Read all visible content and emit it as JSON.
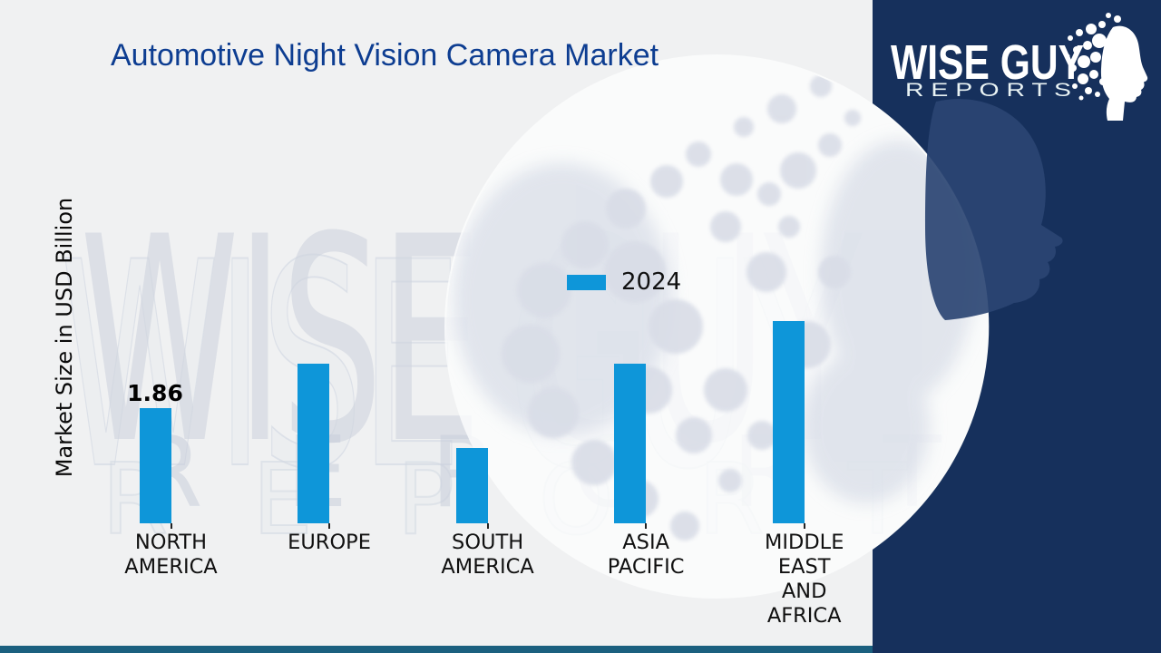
{
  "page": {
    "background_color": "#f0f1f2",
    "bottom_bar_color": "#1b607f"
  },
  "title": {
    "text": "Automotive Night Vision Camera Market",
    "color": "#0d3d91"
  },
  "logo": {
    "brand_line1": "WISE GUY",
    "brand_line2": "R E P O R T S",
    "panel_color": "#16305c"
  },
  "watermark": {
    "line1": "WISE GUY",
    "line2": "R E P O R T S"
  },
  "legend": {
    "label": "2024",
    "swatch_color": "#0e96d9"
  },
  "chart_data": {
    "type": "bar",
    "title": "Automotive Night Vision Camera Market",
    "xlabel": "",
    "ylabel": "Market Size in USD Billion",
    "categories": [
      "NORTH AMERICA",
      "EUROPE",
      "SOUTH AMERICA",
      "ASIA PACIFIC",
      "MIDDLE EAST AND AFRICA"
    ],
    "category_lines": [
      [
        "NORTH",
        "AMERICA"
      ],
      [
        "EUROPE"
      ],
      [
        "SOUTH",
        "AMERICA"
      ],
      [
        "ASIA",
        "PACIFIC"
      ],
      [
        "MIDDLE",
        "EAST",
        "AND",
        "AFRICA"
      ]
    ],
    "series": [
      {
        "name": "2024",
        "values": [
          1.86,
          2.58,
          1.22,
          2.58,
          3.27
        ]
      }
    ],
    "value_labels": [
      "1.86",
      "",
      "",
      "",
      ""
    ],
    "bar_color": "#0e96d9",
    "ylim": [
      0,
      3.5
    ],
    "grid": false,
    "legend_position": "upper center",
    "legend_entries": [
      "2024"
    ]
  }
}
